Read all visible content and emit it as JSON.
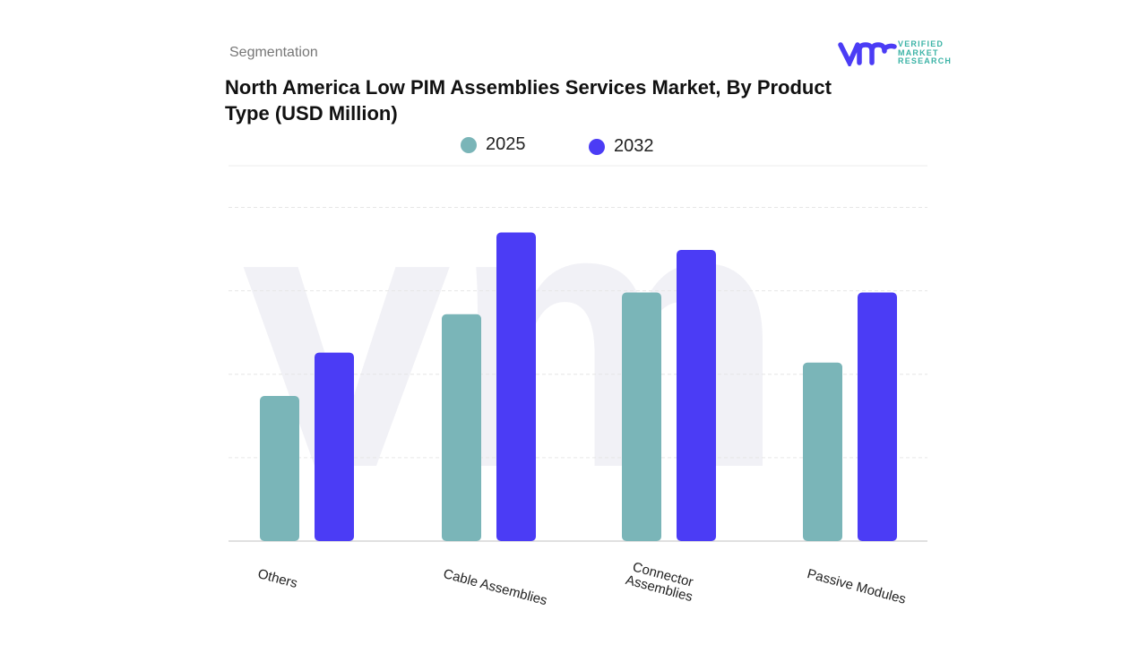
{
  "header": {
    "segment_label": "Segmentation",
    "brand": "VERIFIED MARKET RESEARCH"
  },
  "chart_data": {
    "type": "bar",
    "title": "North America Low PIM Assemblies Services Market, By Product Type (USD Million)",
    "categories": [
      "Others",
      "Cable Assemblies",
      "Connector Assemblies",
      "Passive Modules"
    ],
    "series": [
      {
        "name": "2025",
        "color": "#7ab5b8",
        "values": [
          1.74,
          2.72,
          2.98,
          2.14
        ]
      },
      {
        "name": "2032",
        "color": "#4b3cf5",
        "values": [
          2.26,
          3.7,
          3.49,
          2.98
        ]
      }
    ],
    "xlabel": "",
    "ylabel": "",
    "ylim": [
      0,
      4.5
    ],
    "grid": true,
    "legend": "top",
    "y_axis_labels_shown": false
  }
}
